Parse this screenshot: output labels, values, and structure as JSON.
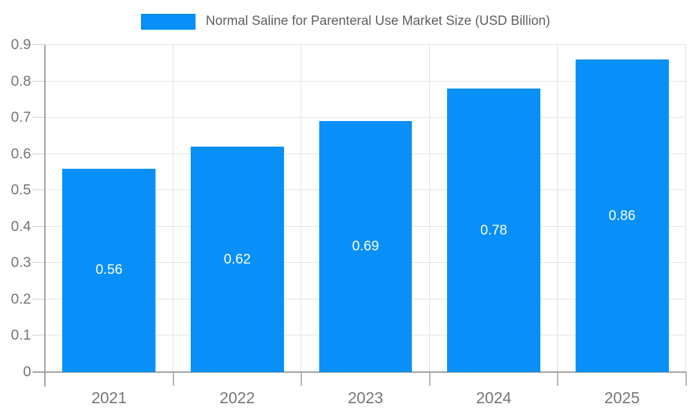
{
  "chart_data": {
    "type": "bar",
    "title": "Normal Saline for Parenteral Use Market Size (USD Billion)",
    "categories": [
      "2021",
      "2022",
      "2023",
      "2024",
      "2025"
    ],
    "values": [
      0.56,
      0.62,
      0.69,
      0.78,
      0.86
    ],
    "value_labels": [
      "0.56",
      "0.62",
      "0.69",
      "0.78",
      "0.86"
    ],
    "xlabel": "",
    "ylabel": "",
    "ylim": [
      0,
      0.9
    ],
    "yticks": [
      0,
      0.1,
      0.2,
      0.3,
      0.4,
      0.5,
      0.6,
      0.7,
      0.8,
      0.9
    ],
    "ytick_labels": [
      "0",
      "0.1",
      "0.2",
      "0.3",
      "0.4",
      "0.5",
      "0.6",
      "0.7",
      "0.8",
      "0.9"
    ],
    "grid": true,
    "legend_position": "top",
    "bar_width_fraction": 0.727,
    "colors": {
      "bar": "#0890f8",
      "gridline": "#e2e2e2",
      "axis_line": "#9e9e9e",
      "y_tick": "#cccccc",
      "x_tick": "#b3b3b3",
      "axis_text": "#757575",
      "title_text": "#5e5e5e",
      "value_text": "#ffffff",
      "background": "#ffffff"
    }
  }
}
